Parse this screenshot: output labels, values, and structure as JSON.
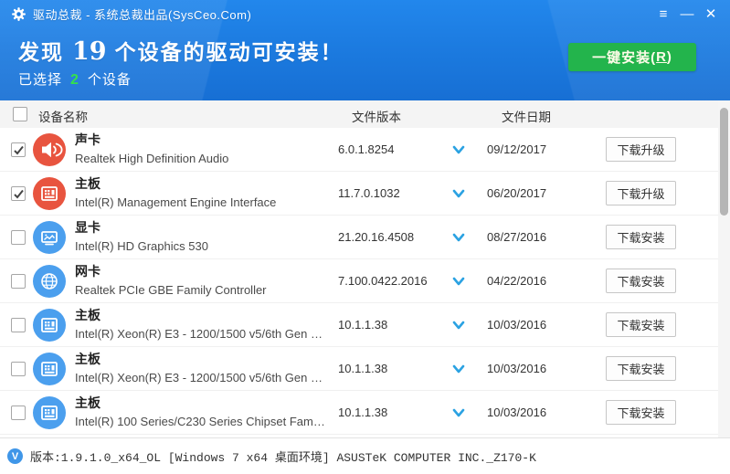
{
  "titlebar": {
    "title": "驱动总裁 - 系统总裁出品(SysCeo.Com)",
    "menu_icon": "≡",
    "minimize_icon": "—",
    "close_icon": "✕"
  },
  "colors": {
    "header_blue": "#1b79de",
    "install_green": "#23b44c",
    "selected_count_green": "#35e14b",
    "checked_icon_red": "#e8543f",
    "unchecked_icon_blue": "#4b9fee",
    "chevron_blue": "#2ba2e2"
  },
  "hero": {
    "found_prefix": "发现",
    "found_count": "19",
    "found_suffix": "个设备的驱动可安装！",
    "selected_prefix": "已选择",
    "selected_count": "2",
    "selected_suffix": "个设备",
    "install_pre": "一键安装(",
    "install_key": "R",
    "install_post": ")"
  },
  "table": {
    "col_device": "设备名称",
    "col_version": "文件版本",
    "col_date": "文件日期"
  },
  "rows": [
    {
      "checked": true,
      "icon": "speaker-icon",
      "icon_color": "#e8543f",
      "type": "声卡",
      "desc": "Realtek High Definition Audio",
      "version": "6.0.1.8254",
      "date": "09/12/2017",
      "action": "下载升级"
    },
    {
      "checked": true,
      "icon": "motherboard-icon",
      "icon_color": "#e8543f",
      "type": "主板",
      "desc": "Intel(R) Management Engine Interface",
      "version": "11.7.0.1032",
      "date": "06/20/2017",
      "action": "下载升级"
    },
    {
      "checked": false,
      "icon": "display-icon",
      "icon_color": "#4b9fee",
      "type": "显卡",
      "desc": "Intel(R) HD Graphics 530",
      "version": "21.20.16.4508",
      "date": "08/27/2016",
      "action": "下载安装"
    },
    {
      "checked": false,
      "icon": "globe-icon",
      "icon_color": "#4b9fee",
      "type": "网卡",
      "desc": "Realtek PCIe GBE Family Controller",
      "version": "7.100.0422.2016",
      "date": "04/22/2016",
      "action": "下载安装"
    },
    {
      "checked": false,
      "icon": "motherboard-icon",
      "icon_color": "#4b9fee",
      "type": "主板",
      "desc": "Intel(R) Xeon(R) E3 - 1200/1500 v5/6th Gen …",
      "version": "10.1.1.38",
      "date": "10/03/2016",
      "action": "下载安装"
    },
    {
      "checked": false,
      "icon": "motherboard-icon",
      "icon_color": "#4b9fee",
      "type": "主板",
      "desc": "Intel(R) Xeon(R) E3 - 1200/1500 v5/6th Gen …",
      "version": "10.1.1.38",
      "date": "10/03/2016",
      "action": "下载安装"
    },
    {
      "checked": false,
      "icon": "motherboard-icon",
      "icon_color": "#4b9fee",
      "type": "主板",
      "desc": "Intel(R) 100 Series/C230 Series Chipset Fam…",
      "version": "10.1.1.38",
      "date": "10/03/2016",
      "action": "下载安装"
    }
  ],
  "footer": {
    "badge": "V",
    "text": "版本:1.9.1.0_x64_OL [Windows 7 x64 桌面环境] ASUSTeK COMPUTER INC._Z170-K"
  }
}
